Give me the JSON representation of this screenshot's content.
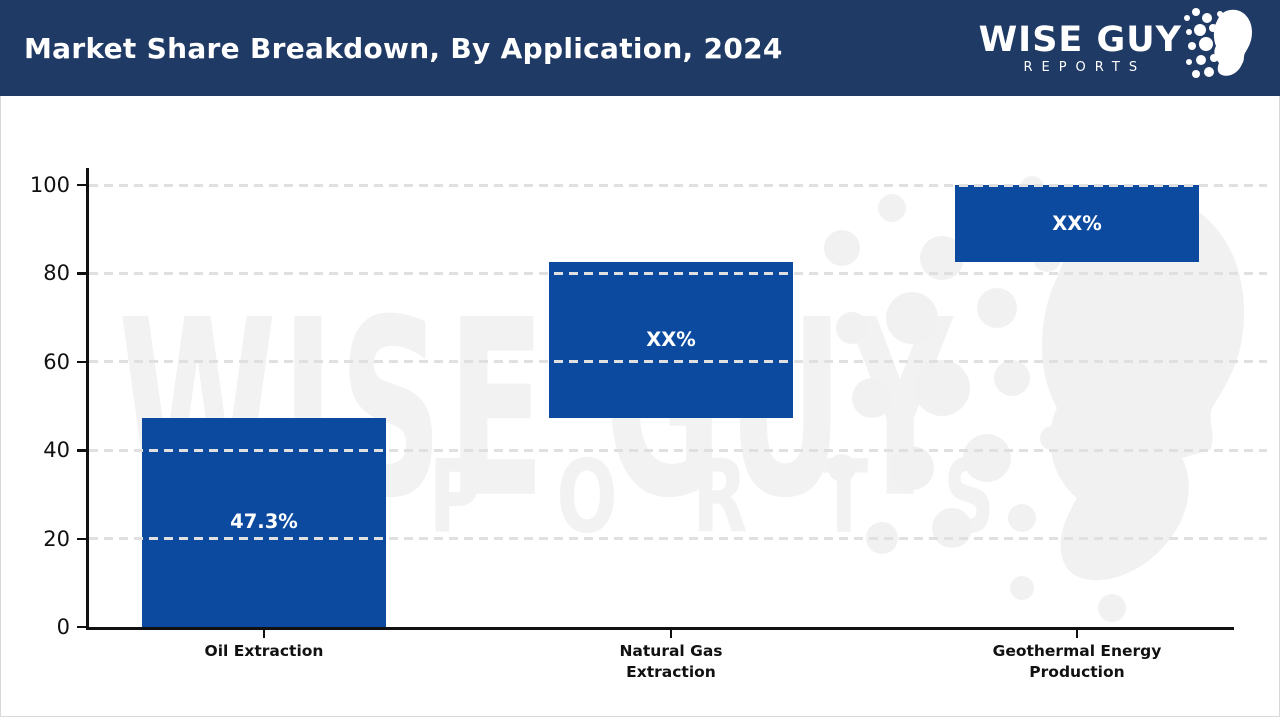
{
  "header": {
    "title": "Market Share Breakdown, By Application, 2024",
    "bg_color": "#203A66",
    "logo": {
      "line1": "WISE GUY",
      "line2": "REPORTS"
    }
  },
  "watermark": {
    "line1": "WISE GUY",
    "line2": "REPORTS"
  },
  "chart_data": {
    "type": "bar",
    "subtype": "waterfall-stacked-breakdown",
    "title": "Market Share Breakdown, By Application, 2024",
    "categories": [
      "Oil Extraction",
      "Natural Gas\nExtraction",
      "Geothermal Energy\nProduction"
    ],
    "segments": [
      {
        "category": "Oil Extraction",
        "start": 0,
        "end": 47.3,
        "size_label": "47.3%",
        "label": "47.3%"
      },
      {
        "category": "Natural Gas Extraction",
        "start": 47.3,
        "end": 82.5,
        "size_label": "XX%",
        "label": "XX%"
      },
      {
        "category": "Geothermal Energy Production",
        "start": 82.5,
        "end": 100,
        "size_label": "XX%",
        "label": "XX%"
      }
    ],
    "yticks": [
      0,
      20,
      40,
      60,
      80,
      100
    ],
    "ylim": [
      0,
      104
    ],
    "xlabel": "",
    "ylabel": "",
    "grid": true,
    "grid_style": "dashed",
    "grid_color": "#e0e0e0",
    "bar_color": "#0B4A9F",
    "label_color": "#ffffff",
    "axis_color": "#111111",
    "legend": "none"
  }
}
